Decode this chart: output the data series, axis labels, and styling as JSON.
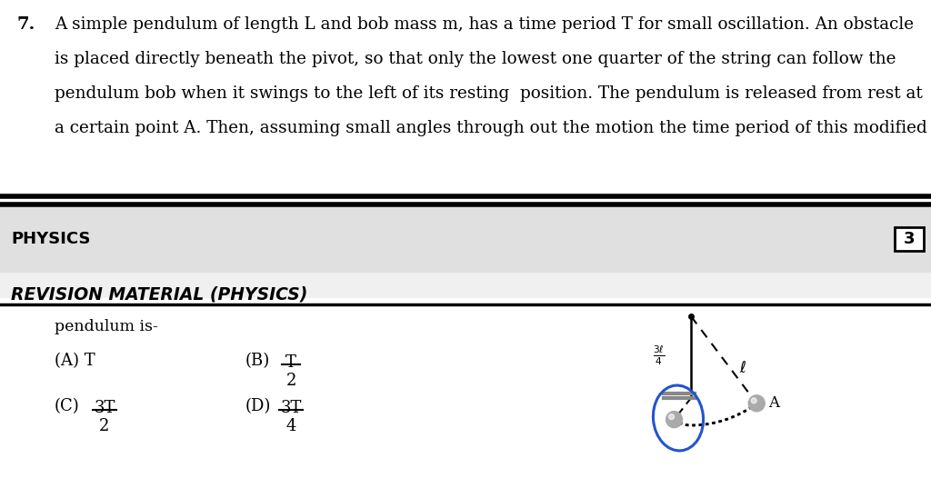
{
  "bg_color_top": "#ffffff",
  "bg_color_mid": "#e8e8e8",
  "bg_color_bottom": "#f2f2f2",
  "question_number": "7.",
  "question_text_lines": [
    "A simple pendulum of length L and bob mass m, has a time period T for small oscillation. An obstacle",
    "is placed directly beneath the pivot, so that only the lowest one quarter of the string can follow the",
    "pendulum bob when it swings to the left of its resting  position. The pendulum is released from rest at",
    "a certain point A. Then, assuming small angles through out the motion the time period of this modified"
  ],
  "header_label": "PHYSICS",
  "header_number": "3",
  "section_title": "REVISION MATERIAL (PHYSICS)",
  "pendulum_text": "pendulum is-",
  "text_color": "#000000"
}
